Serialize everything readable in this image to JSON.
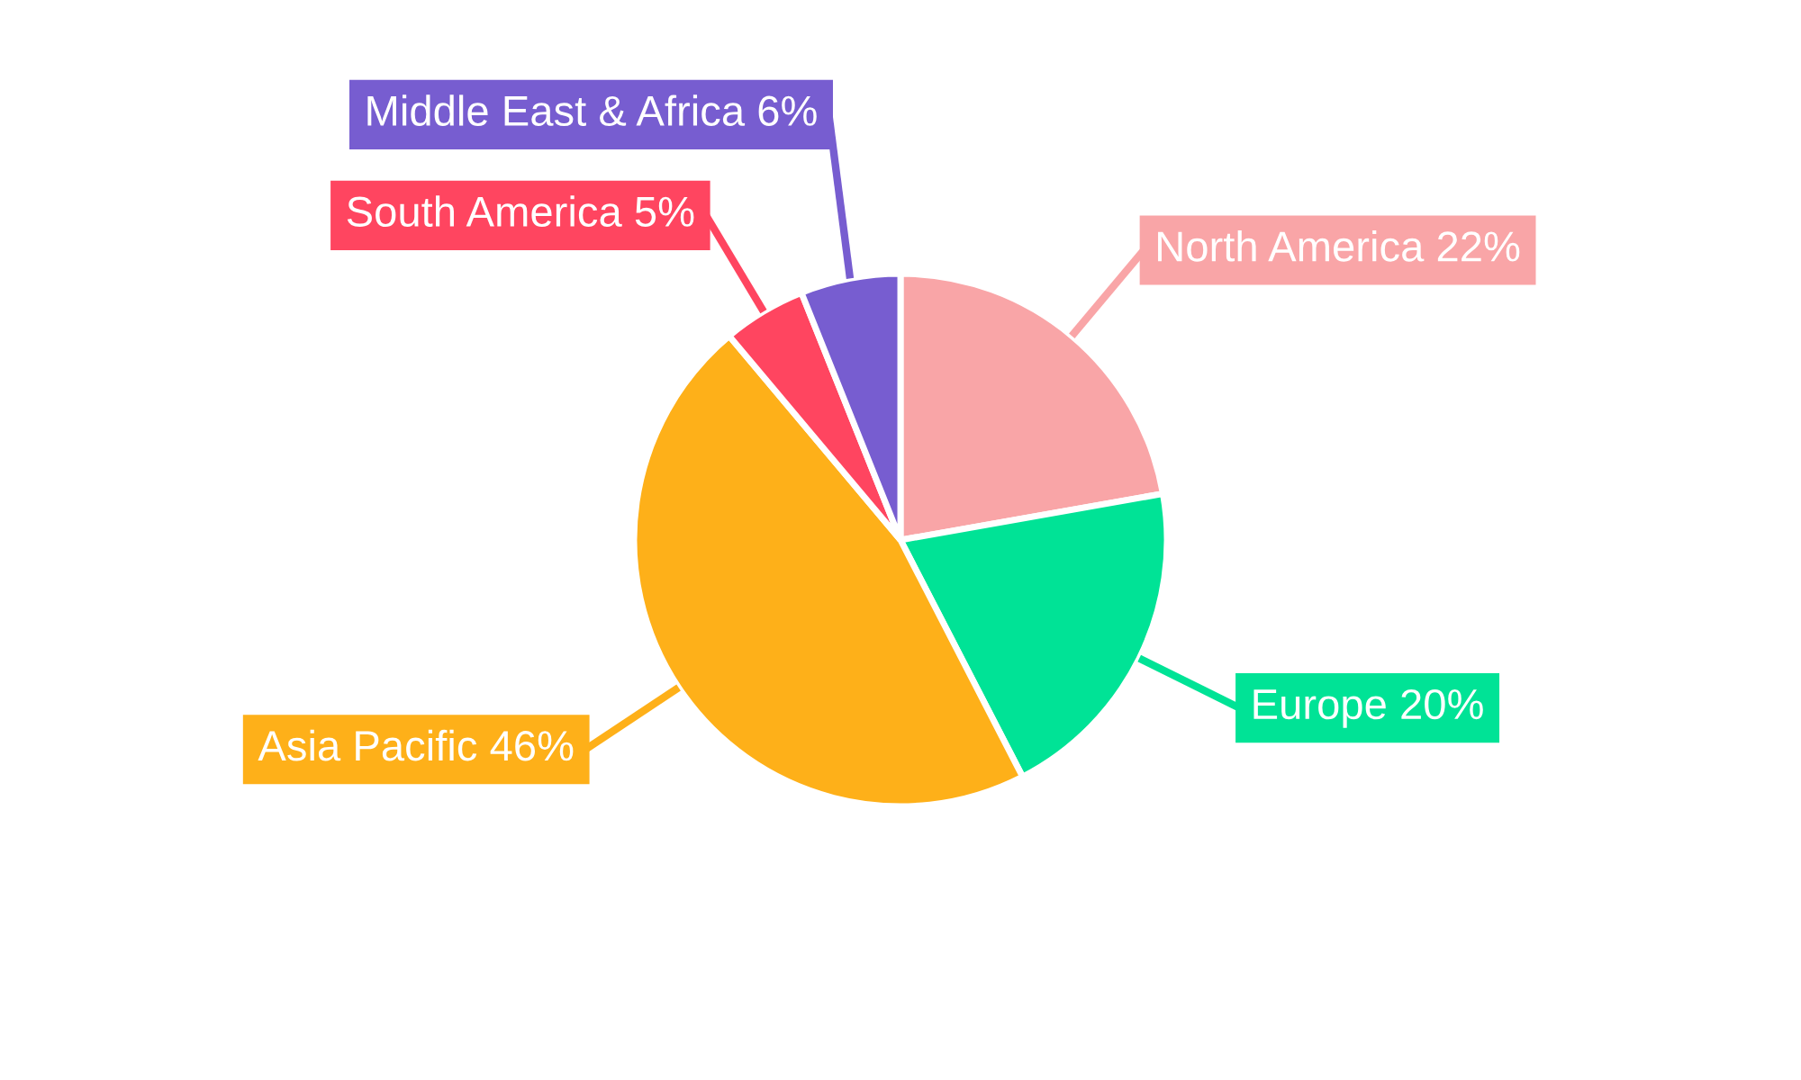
{
  "chart_data": {
    "type": "pie",
    "categories": [
      "North America",
      "Europe",
      "Asia Pacific",
      "South America",
      "Middle East & Africa"
    ],
    "values": [
      22,
      20,
      46,
      5,
      6
    ],
    "value_labels": [
      "22%",
      "20%",
      "46%",
      "5%",
      "6%"
    ],
    "colors": [
      "#f9a5a7",
      "#00e396",
      "#feb019",
      "#ff4560",
      "#775dd0"
    ],
    "legend": false
  }
}
